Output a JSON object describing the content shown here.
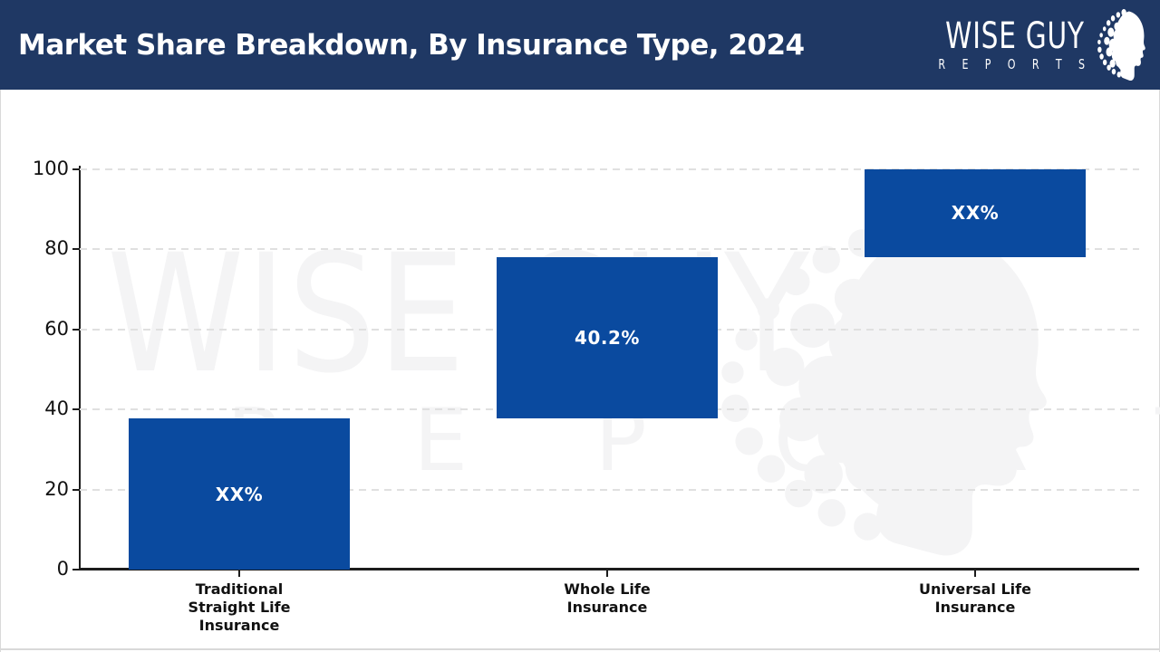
{
  "header": {
    "title": "Market Share Breakdown, By Insurance Type, 2024",
    "background": "#1f3864",
    "logo": {
      "line1": "WISE GUY",
      "line2": "R E P O R T S",
      "icon": "dotted-head-profile-icon"
    }
  },
  "watermark": {
    "line1": "WISE GUY",
    "line2": "R E P O R T S",
    "icon": "dotted-head-profile-icon",
    "color": "#f4f4f5"
  },
  "chart_data": {
    "type": "bar",
    "subtype": "stacked-waterfall-segments",
    "title": "Market Share Breakdown, By Insurance Type, 2024",
    "xlabel": "",
    "ylabel": "",
    "ylim": [
      0,
      100
    ],
    "yticks": [
      0,
      20,
      40,
      60,
      80,
      100
    ],
    "grid": "horizontal-dashed",
    "bar_color": "#0a4a9f",
    "categories": [
      "Traditional Straight Life Insurance",
      "Whole Life Insurance",
      "Universal Life Insurance"
    ],
    "segments": [
      {
        "category": "Traditional Straight Life Insurance",
        "label_lines": [
          "Traditional",
          "Straight Life",
          "Insurance"
        ],
        "start": 0,
        "end": 37.7,
        "value_label": "XX%",
        "value_estimate": 37.7
      },
      {
        "category": "Whole Life Insurance",
        "label_lines": [
          "Whole Life",
          "Insurance"
        ],
        "start": 37.7,
        "end": 77.9,
        "value_label": "40.2%",
        "value_estimate": 40.2
      },
      {
        "category": "Universal Life Insurance",
        "label_lines": [
          "Universal Life",
          "Insurance"
        ],
        "start": 77.9,
        "end": 100,
        "value_label": "XX%",
        "value_estimate": 22.1
      }
    ]
  },
  "colors": {
    "header_background": "#1f3864",
    "bar_blue": "#0a4a9f",
    "axis": "#1c1c1c",
    "gridline": "#e0e0e0",
    "text": "#111111",
    "watermark": "#f4f4f5"
  }
}
